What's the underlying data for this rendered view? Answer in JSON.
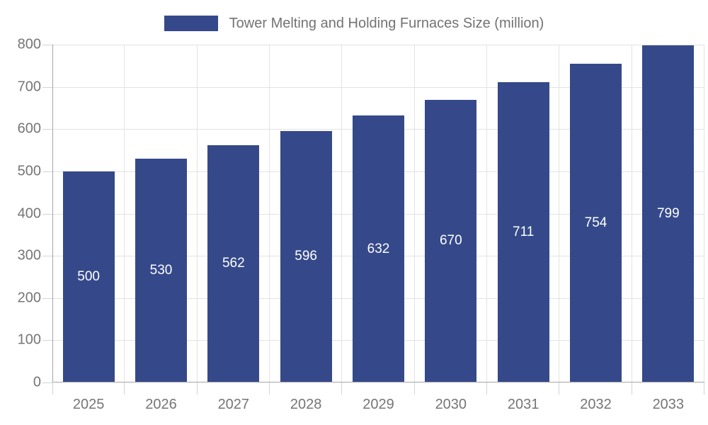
{
  "legend": {
    "series_label": "Tower Melting and Holding Furnaces Size (million)"
  },
  "colors": {
    "bar": "#35498A",
    "grid": "#e3e3e3",
    "axis": "#a6a6a6",
    "tick": "#d0d4dd",
    "axis_label_text": "#757575",
    "legend_text": "#737373",
    "bar_value_text": "#ffffff",
    "background": "#ffffff"
  },
  "chart_data": {
    "type": "bar",
    "categories": [
      "2025",
      "2026",
      "2027",
      "2028",
      "2029",
      "2030",
      "2031",
      "2032",
      "2033"
    ],
    "values": [
      500,
      530,
      562,
      596,
      632,
      670,
      711,
      754,
      799
    ],
    "title": "",
    "legend": "Tower Melting and Holding Furnaces Size (million)",
    "xlabel": "",
    "ylabel": "",
    "ylim": [
      0,
      800
    ],
    "yticks": [
      0,
      100,
      200,
      300,
      400,
      500,
      600,
      700,
      800
    ],
    "grid": true,
    "legend_position": "top-center",
    "value_label_position": "inside-center"
  }
}
